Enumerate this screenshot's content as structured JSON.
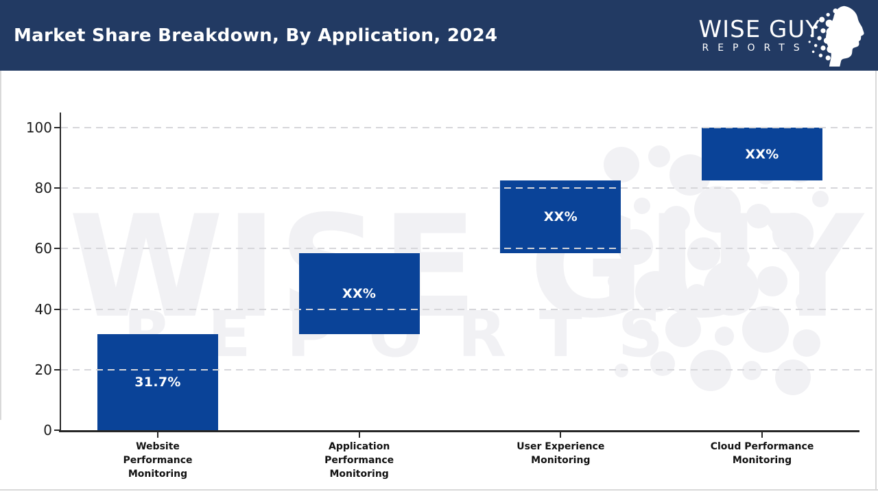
{
  "header": {
    "title": "Market Share Breakdown, By Application, 2024",
    "logo": {
      "line1": "WISE GUY",
      "line2": "REPORTS"
    }
  },
  "watermark": {
    "line1": "WISE GUY",
    "line2": "REPORTS"
  },
  "colors": {
    "header_bg": "#223a63",
    "bar": "#0a4398",
    "grid": "#d6d6da",
    "axis": "#262626",
    "watermark": "#f1f1f4",
    "value_label": "#ffffff"
  },
  "chart_data": {
    "type": "bar",
    "subtype": "waterfall",
    "title": "Market Share Breakdown, By Application, 2024",
    "xlabel": "",
    "ylabel": "",
    "ylim": [
      0,
      100
    ],
    "y_ticks": [
      0,
      20,
      40,
      60,
      80,
      100
    ],
    "grid": "horizontal-dashed",
    "legend": "none",
    "categories": [
      [
        "Website",
        "Performance",
        "Monitoring"
      ],
      [
        "Application",
        "Performance",
        "Monitoring"
      ],
      [
        "User Experience",
        "Monitoring"
      ],
      [
        "Cloud Performance",
        "Monitoring"
      ]
    ],
    "series": [
      {
        "name": "Market Share",
        "segments": [
          {
            "start": 0,
            "end": 31.7,
            "label": "31.7%"
          },
          {
            "start": 31.7,
            "end": 58.5,
            "label": "XX%"
          },
          {
            "start": 58.5,
            "end": 82.5,
            "label": "XX%"
          },
          {
            "start": 82.5,
            "end": 100,
            "label": "XX%"
          }
        ]
      }
    ]
  }
}
